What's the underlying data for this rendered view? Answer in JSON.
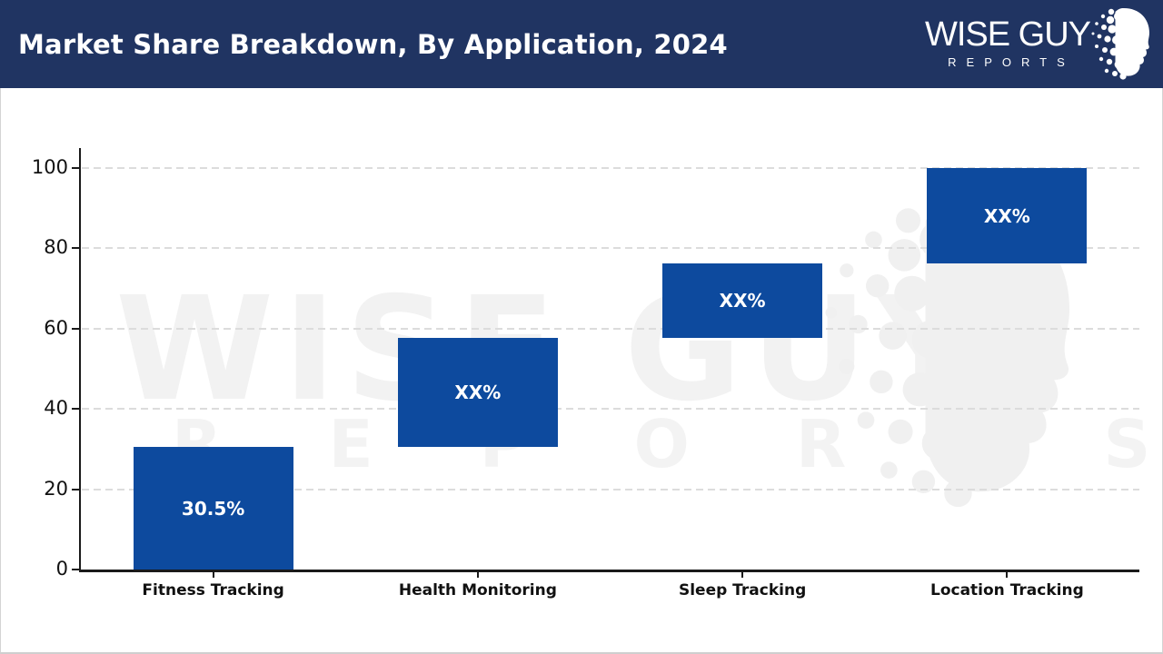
{
  "header": {
    "title": "Market Share Breakdown, By Application, 2024",
    "brand_line1": "WISE GUY",
    "brand_line2": "REPORTS",
    "background": "#203462"
  },
  "watermark": {
    "line1": "WISE GUY",
    "line2": "R E P O R T S"
  },
  "chart_data": {
    "type": "bar",
    "subtype": "floating-waterfall",
    "title": "Market Share Breakdown, By Application, 2024",
    "categories": [
      "Fitness Tracking",
      "Health Monitoring",
      "Sleep Tracking",
      "Location Tracking"
    ],
    "segments": [
      {
        "category": "Fitness Tracking",
        "start": 0,
        "end": 30.5,
        "label": "30.5%"
      },
      {
        "category": "Health Monitoring",
        "start": 30.5,
        "end": 57.8,
        "label": "XX%"
      },
      {
        "category": "Sleep Tracking",
        "start": 57.8,
        "end": 76.2,
        "label": "XX%"
      },
      {
        "category": "Location Tracking",
        "start": 76.2,
        "end": 100,
        "label": "XX%"
      }
    ],
    "ylim": [
      0,
      105
    ],
    "yticks": [
      0,
      20,
      40,
      60,
      80,
      100
    ],
    "grid": "horizontal-dashed",
    "legend": "none",
    "bar_color": "#0d4a9e",
    "bar_label_color": "#ffffff",
    "axis_color": "#1a1a1a",
    "gridline_color": "#dcdcdc"
  }
}
